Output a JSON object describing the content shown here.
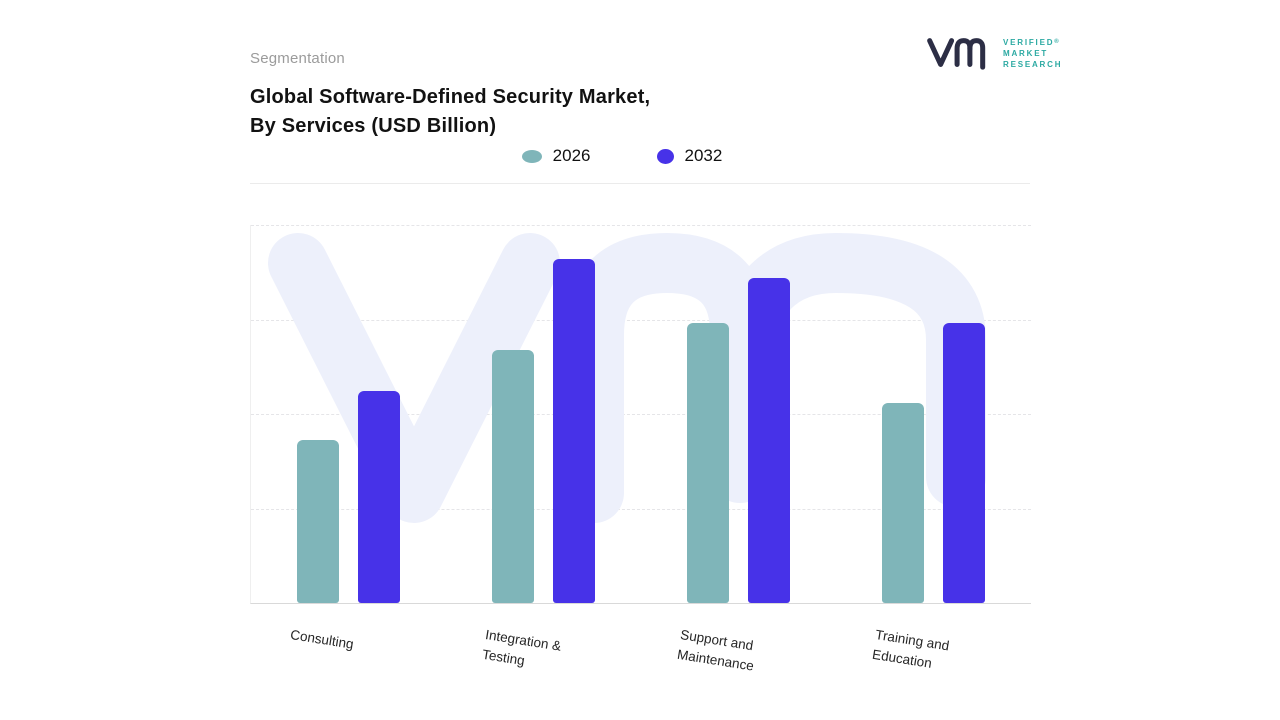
{
  "header": {
    "eyebrow": "Segmentation",
    "title_lines": [
      "Global Software-Defined Security Market,",
      "By Services (USD Billion)"
    ]
  },
  "brand": {
    "name_lines": [
      "VERIFIED",
      "MARKET",
      "RESEARCH"
    ],
    "registered": "®"
  },
  "legend": {
    "items": [
      {
        "label": "2026",
        "color": "#7fb5b9"
      },
      {
        "label": "2032",
        "color": "#4732e8"
      }
    ]
  },
  "chart_data": {
    "type": "bar",
    "title": "Global Software-Defined Security Market, By Services (USD Billion)",
    "categories": [
      "Consulting",
      "Integration & Testing",
      "Support and Maintenance",
      "Training and Education"
    ],
    "category_label_lines": [
      [
        "Consulting"
      ],
      [
        "Integration &",
        "Testing"
      ],
      [
        "Support and",
        "Maintenance"
      ],
      [
        "Training and",
        "Education"
      ]
    ],
    "series": [
      {
        "name": "2026",
        "color": "#7fb5b9",
        "values": [
          4.3,
          6.7,
          7.4,
          5.3
        ]
      },
      {
        "name": "2032",
        "color": "#4732e8",
        "values": [
          5.6,
          9.1,
          8.6,
          7.4
        ]
      }
    ],
    "ylim": [
      0,
      10
    ],
    "y_tick_labels_visible": false,
    "gridlines": "horizontal dashed",
    "legend_position": "top center",
    "x_label_rotation_deg": 9
  },
  "watermark": {
    "text": "vm",
    "color": "#edf0fb"
  },
  "colors": {
    "background": "#ffffff",
    "title": "#121212",
    "eyebrow": "#9b9b9b",
    "axis_label": "#262626",
    "gridline": "#e5e5e8",
    "baseline": "#d9d9d9",
    "brand_teal": "#2ba9a2",
    "brand_navy": "#2c2e45",
    "bar_2026": "#7fb5b9",
    "bar_2032": "#4732e8"
  }
}
